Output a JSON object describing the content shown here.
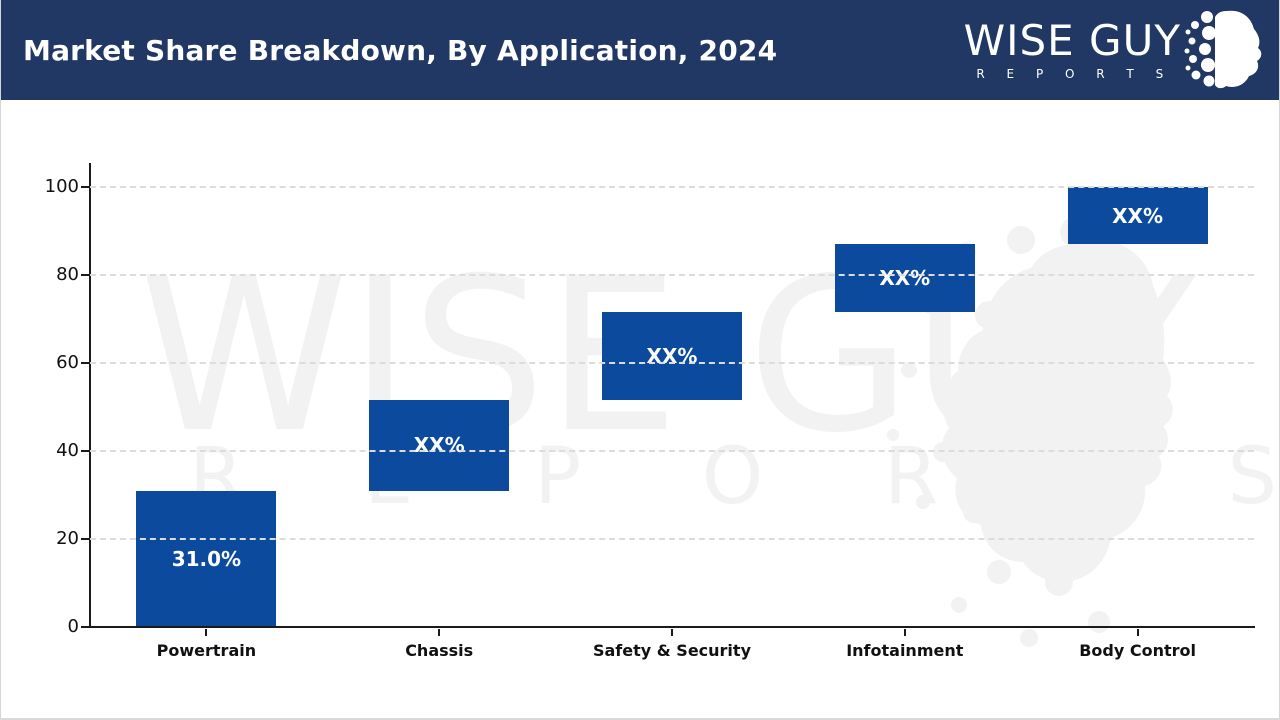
{
  "header": {
    "title": "Market Share Breakdown, By Application, 2024",
    "bg_color": "#213864",
    "logo": {
      "line1": "WISE GUY",
      "line2": "R E P O R T S"
    }
  },
  "watermark": {
    "line1": "WISE GUY",
    "line2": "R E P O R T S"
  },
  "chart_data": {
    "type": "bar",
    "subtype": "waterfall",
    "title": "Market Share Breakdown, By Application, 2024",
    "categories": [
      "Powertrain",
      "Chassis",
      "Safety & Security",
      "Infotainment",
      "Body Control"
    ],
    "segments": [
      {
        "category": "Powertrain",
        "start": 0,
        "end": 31,
        "label": "31.0%"
      },
      {
        "category": "Chassis",
        "start": 31,
        "end": 51.5,
        "label": "XX%"
      },
      {
        "category": "Safety & Security",
        "start": 51.5,
        "end": 71.5,
        "label": "XX%"
      },
      {
        "category": "Infotainment",
        "start": 71.5,
        "end": 87,
        "label": "XX%"
      },
      {
        "category": "Body Control",
        "start": 87,
        "end": 100,
        "label": "XX%"
      }
    ],
    "y_ticks": [
      0,
      20,
      40,
      60,
      80,
      100
    ],
    "ylim": [
      0,
      106
    ],
    "xlabel": "",
    "ylabel": "",
    "bar_color": "#0c4a9e",
    "bar_label_color": "#ffffff",
    "grid": "horizontal-dashed",
    "legend": "none"
  }
}
